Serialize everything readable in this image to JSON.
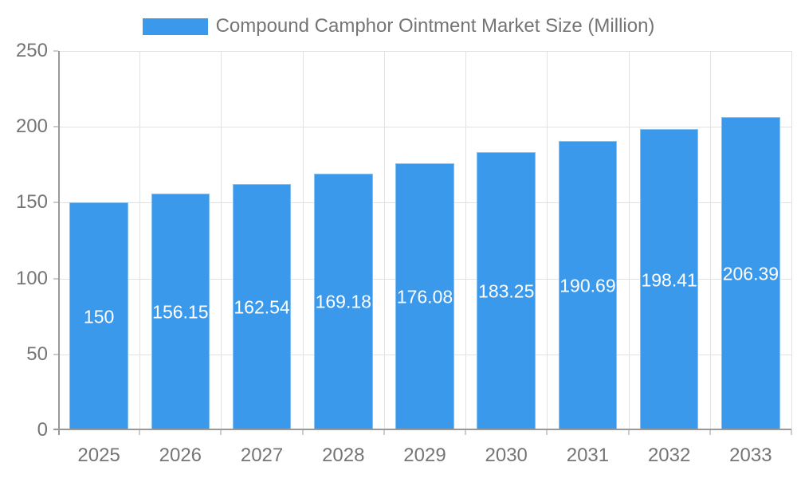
{
  "chart_data": {
    "type": "bar",
    "title": "Compound Camphor Ointment Market Size (Million)",
    "legend": {
      "label": "Compound Camphor Ointment Market Size (Million)",
      "position": "top"
    },
    "categories": [
      "2025",
      "2026",
      "2027",
      "2028",
      "2029",
      "2030",
      "2031",
      "2032",
      "2033"
    ],
    "values": [
      150,
      156.15,
      162.54,
      169.18,
      176.08,
      183.25,
      190.69,
      198.41,
      206.39
    ],
    "value_labels": [
      "150",
      "156.15",
      "162.54",
      "169.18",
      "176.08",
      "183.25",
      "190.69",
      "198.41",
      "206.39"
    ],
    "xlabel": "",
    "ylabel": "",
    "ylim": [
      0,
      250
    ],
    "yticks": [
      0,
      50,
      100,
      150,
      200,
      250
    ],
    "grid": true,
    "colors": {
      "bar": "#3B99EC",
      "grid_line": "#e2e2e2",
      "axis_line": "#999999",
      "tick_mark": "#cccccc",
      "tick_text": "#757575",
      "value_text": "#ffffff",
      "background": "#ffffff"
    }
  }
}
